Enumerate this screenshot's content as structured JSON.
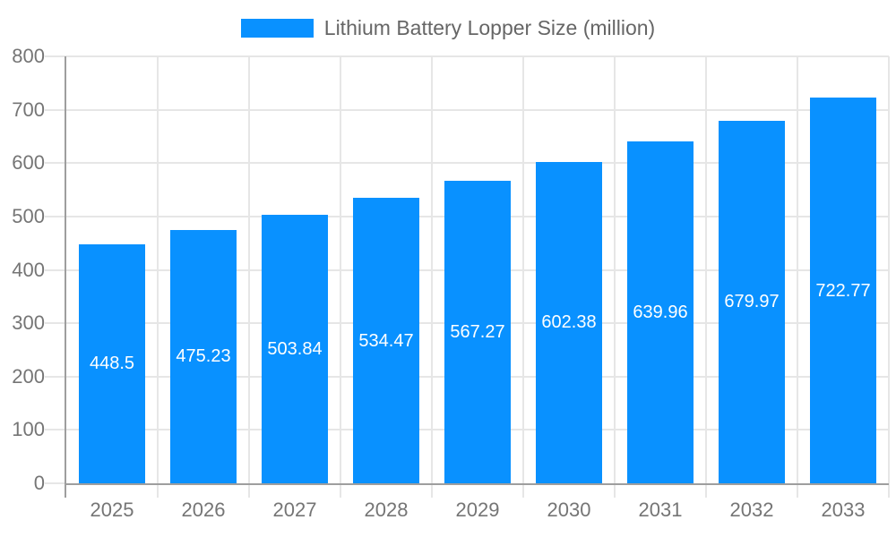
{
  "legend": {
    "label": "Lithium Battery Lopper Size (million)"
  },
  "colors": {
    "bar": "#0991ff",
    "grid": "#e6e6e6",
    "axis": "#9e9e9e",
    "tick_text": "#757575",
    "legend_text": "#666666",
    "value_label": "#ffffff",
    "background": "#ffffff"
  },
  "chart_data": {
    "type": "bar",
    "title": "Lithium Battery Lopper Size (million)",
    "categories": [
      "2025",
      "2026",
      "2027",
      "2028",
      "2029",
      "2030",
      "2031",
      "2032",
      "2033"
    ],
    "values": [
      448.5,
      475.23,
      503.84,
      534.47,
      567.27,
      602.38,
      639.96,
      679.97,
      722.77
    ],
    "value_labels": [
      "448.5",
      "475.23",
      "503.84",
      "534.47",
      "567.27",
      "602.38",
      "639.96",
      "679.97",
      "722.77"
    ],
    "xlabel": "",
    "ylabel": "",
    "ylim": [
      0,
      800
    ],
    "ytick_step": 100,
    "yticks": [
      0,
      100,
      200,
      300,
      400,
      500,
      600,
      700,
      800
    ],
    "grid": true,
    "grid_vertical": true,
    "legend_position": "top-center",
    "value_label_position": "center-of-bar",
    "bar_color": "#0991ff"
  }
}
